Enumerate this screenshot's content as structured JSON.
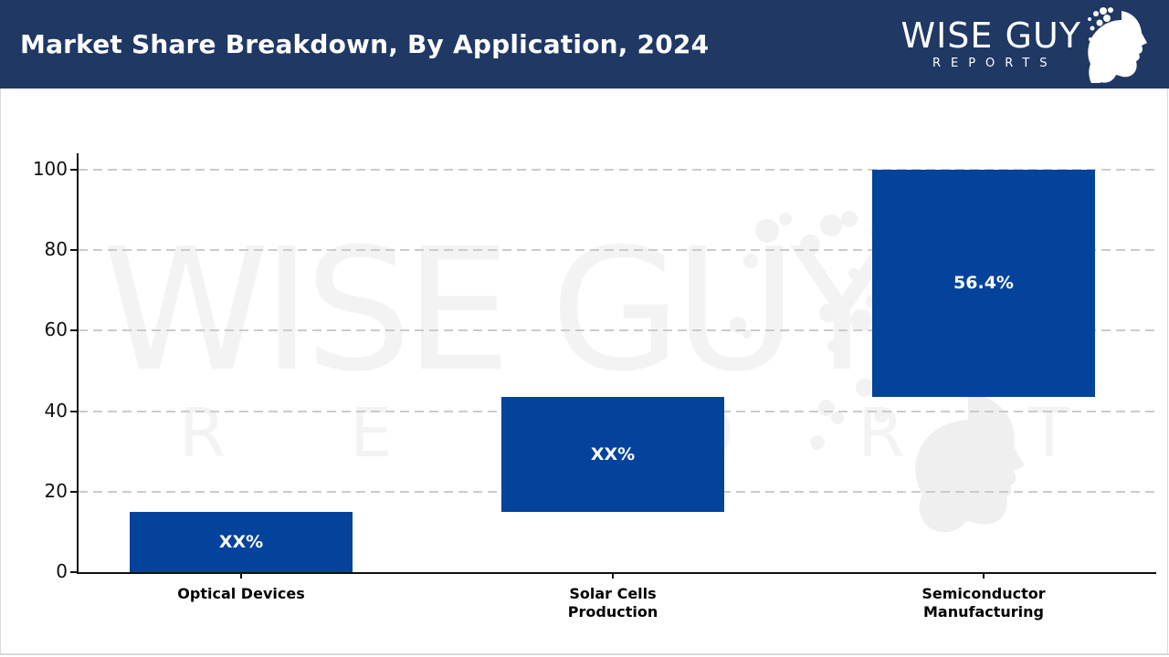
{
  "header": {
    "title": "Market Share Breakdown, By Application, 2024",
    "bg_color": "#1f3864",
    "logo": {
      "line1": "WISE GUY",
      "line2": "REPORTS"
    }
  },
  "watermark": {
    "line1": "WISE GUY",
    "line2": "R E P O R T S"
  },
  "chart_data": {
    "type": "bar",
    "subtype": "floating-waterfall",
    "title": "Market Share Breakdown, By Application, 2024",
    "categories": [
      [
        "Optical Devices"
      ],
      [
        "Solar Cells",
        "Production"
      ],
      [
        "Semiconductor",
        "Manufacturing"
      ]
    ],
    "bars": [
      {
        "label": "XX%",
        "start": 0,
        "end": 15.0
      },
      {
        "label": "XX%",
        "start": 15.0,
        "end": 43.6
      },
      {
        "label": "56.4%",
        "start": 43.6,
        "end": 100.0
      }
    ],
    "yticks": [
      0,
      20,
      40,
      60,
      80,
      100
    ],
    "ylim": [
      0,
      105
    ],
    "xlabel": "",
    "ylabel": "",
    "bar_color": "#04439c",
    "value_label_color": "#ffffff",
    "grid": {
      "horizontal": true,
      "style": "dashed",
      "color": "#cbcbcb"
    },
    "legend": "none"
  }
}
